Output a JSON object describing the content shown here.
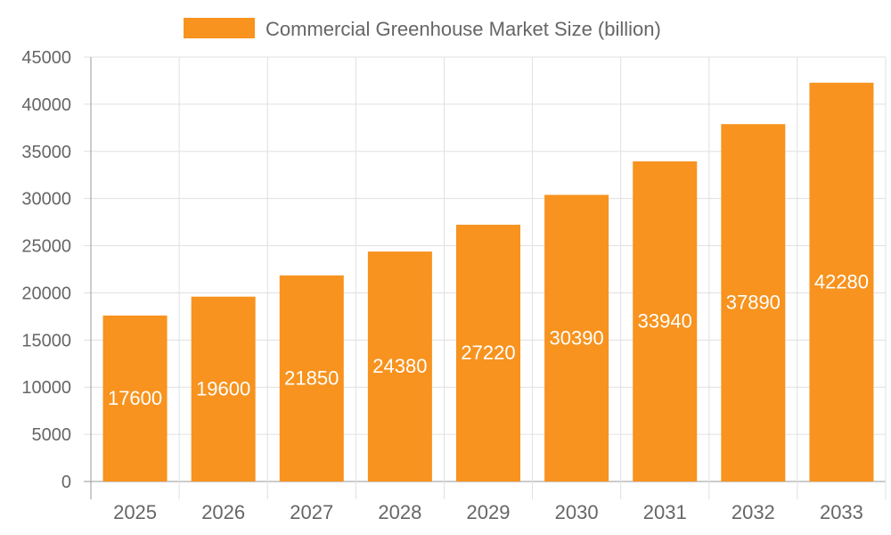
{
  "chart_data": {
    "type": "bar",
    "categories": [
      "2025",
      "2026",
      "2027",
      "2028",
      "2029",
      "2030",
      "2031",
      "2032",
      "2033"
    ],
    "series": [
      {
        "name": "Commercial Greenhouse Market Size (billion)",
        "values": [
          17600,
          19600,
          21850,
          24380,
          27220,
          30390,
          33940,
          37890,
          42280
        ]
      }
    ],
    "ylim": [
      0,
      45000
    ],
    "yticks": [
      0,
      5000,
      10000,
      15000,
      20000,
      25000,
      30000,
      35000,
      40000,
      45000
    ],
    "grid": true,
    "legend": "top",
    "data_labels": true,
    "colors": {
      "bar": "#f7931e",
      "label": "#ffffff",
      "text": "#666666",
      "grid": "#e0e0e0"
    }
  }
}
